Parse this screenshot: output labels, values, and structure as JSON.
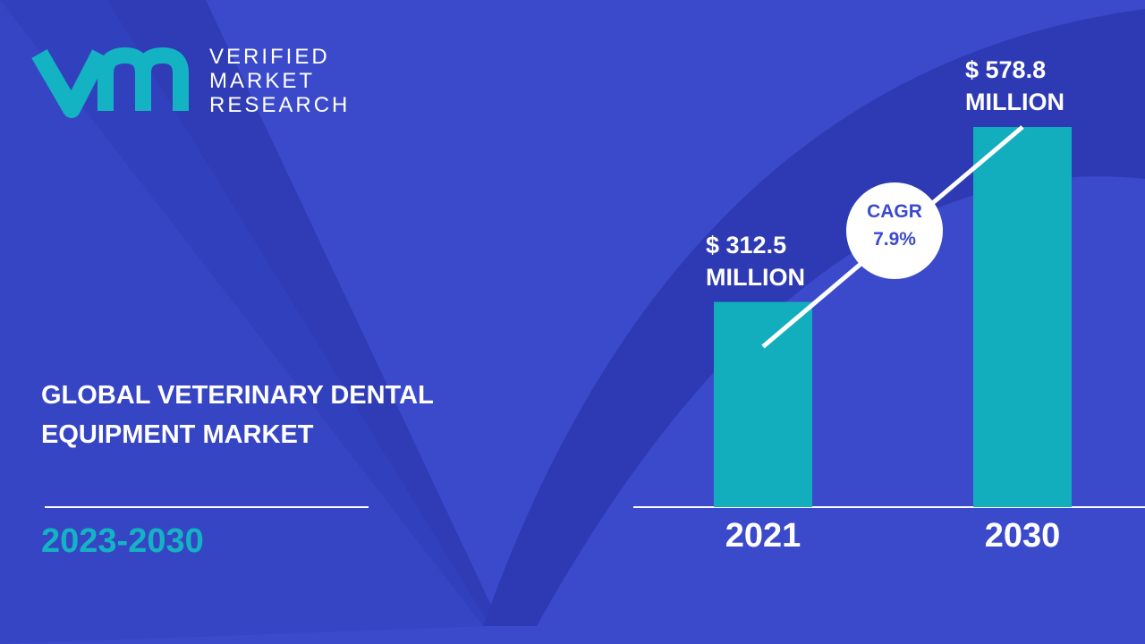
{
  "logo": {
    "lines": [
      "VERIFIED",
      "MARKET",
      "RESEARCH"
    ]
  },
  "chart_data": {
    "type": "bar",
    "title": "GLOBAL VETERINARY DENTAL EQUIPMENT MARKET",
    "period": "2023-2030",
    "categories": [
      "2021",
      "2030"
    ],
    "values": [
      312.5,
      578.8
    ],
    "value_labels": [
      "$ 312.5 MILLION",
      "$ 578.8 MILLION"
    ],
    "color": "#12aebd",
    "cagr": {
      "label": "CAGR",
      "text": "7.9%"
    }
  }
}
